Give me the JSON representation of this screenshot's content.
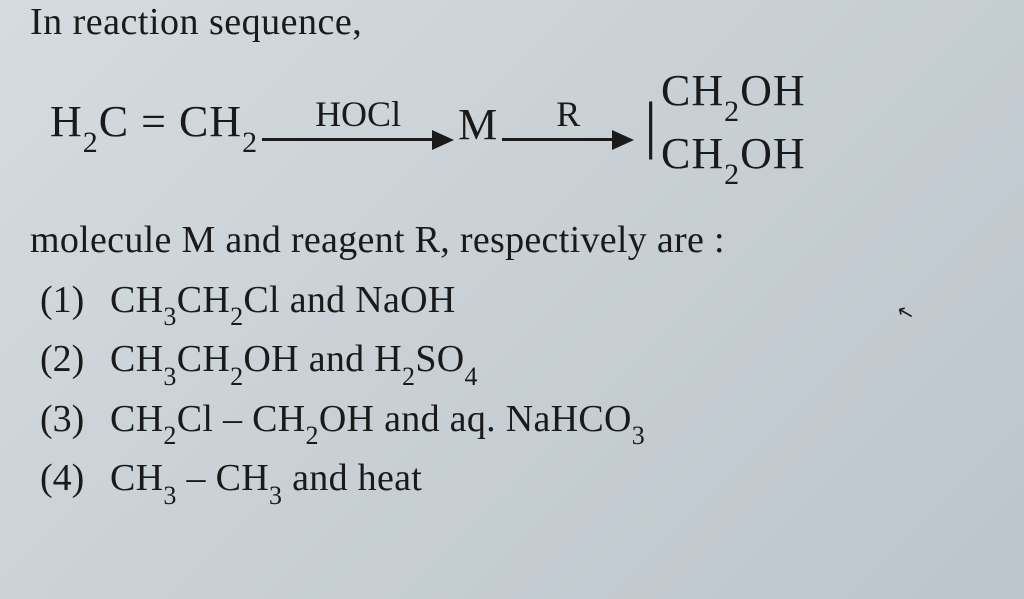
{
  "intro": "In reaction sequence,",
  "reaction": {
    "reactant": {
      "part1": "H",
      "sub1": "2",
      "part2": "C = CH",
      "sub2": "2"
    },
    "arrow1_label": "HOCl",
    "intermediate": "M",
    "arrow2_label": "R",
    "product_top": {
      "p1": "CH",
      "s1": "2",
      "p2": "OH"
    },
    "product_bottom": {
      "p1": "CH",
      "s1": "2",
      "p2": "OH"
    }
  },
  "question": "molecule M and reagent R, respectively are :",
  "options": [
    {
      "num": "(1)",
      "segments": [
        {
          "t": "CH"
        },
        {
          "s": "3"
        },
        {
          "t": "CH"
        },
        {
          "s": "2"
        },
        {
          "t": "Cl and NaOH"
        }
      ]
    },
    {
      "num": "(2)",
      "segments": [
        {
          "t": "CH"
        },
        {
          "s": "3"
        },
        {
          "t": "CH"
        },
        {
          "s": "2"
        },
        {
          "t": "OH and H"
        },
        {
          "s": "2"
        },
        {
          "t": "SO"
        },
        {
          "s": "4"
        }
      ]
    },
    {
      "num": "(3)",
      "segments": [
        {
          "t": "CH"
        },
        {
          "s": "2"
        },
        {
          "t": "Cl – CH"
        },
        {
          "s": "2"
        },
        {
          "t": "OH and aq. NaHCO"
        },
        {
          "s": "3"
        }
      ]
    },
    {
      "num": "(4)",
      "segments": [
        {
          "t": "CH"
        },
        {
          "s": "3"
        },
        {
          "t": " – CH"
        },
        {
          "s": "3"
        },
        {
          "t": " and heat"
        }
      ]
    }
  ],
  "styling": {
    "background_gradient": [
      "#d5dce0",
      "#c8d0d5",
      "#bcc5cc"
    ],
    "text_color": "#1a1a1a",
    "intro_fontsize": 38,
    "formula_fontsize": 44,
    "sub_fontsize": 30,
    "arrow_label_fontsize": 36,
    "question_fontsize": 38,
    "option_fontsize": 38,
    "option_sub_fontsize": 26,
    "arrow_long_width": 170,
    "arrow_short_width": 110,
    "arrow_thickness": 3,
    "font_family": "Times New Roman"
  }
}
